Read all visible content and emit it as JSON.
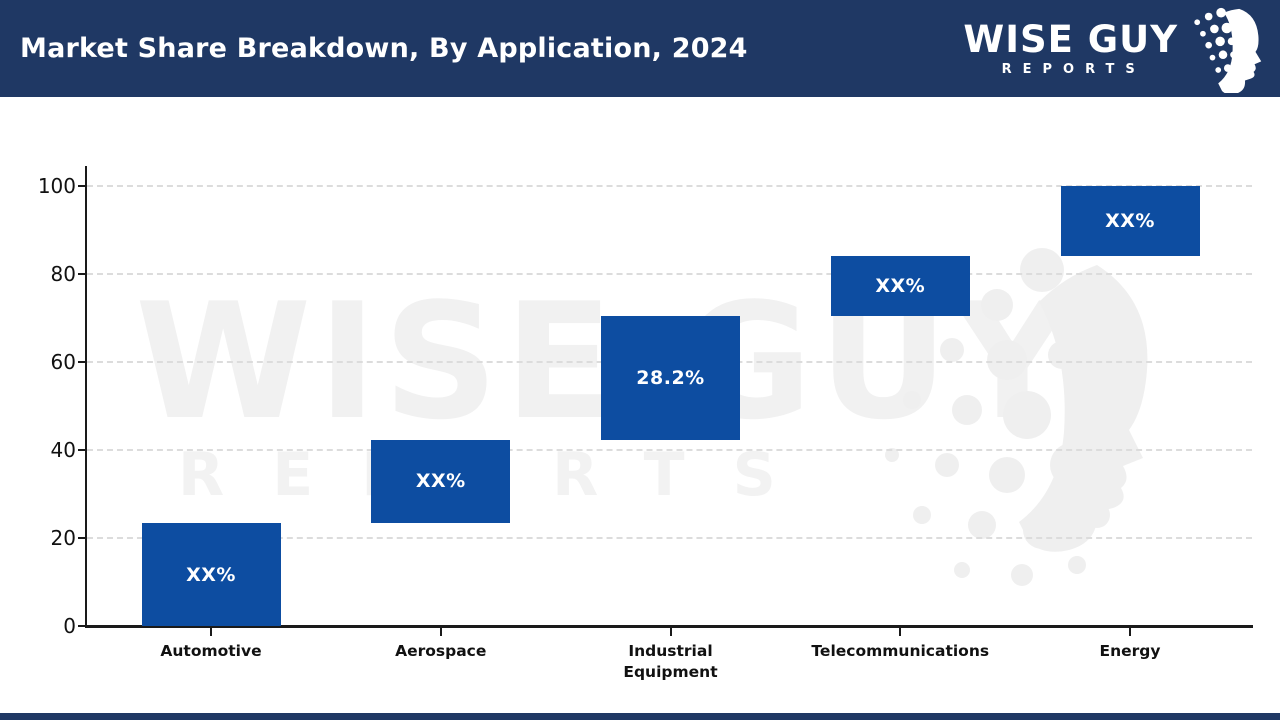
{
  "header": {
    "title": "Market Share Breakdown, By Application, 2024",
    "logo": {
      "line1": "WISE GUY",
      "line2": "REPORTS"
    }
  },
  "watermark": {
    "line1": "WISE GUY",
    "line2": "REPORTS"
  },
  "chart_data": {
    "type": "bar",
    "subtype": "waterfall",
    "title": "Market Share Breakdown, By Application, 2024",
    "categories": [
      "Automotive",
      "Aerospace",
      "Industrial\nEquipment",
      "Telecommunications",
      "Energy"
    ],
    "segments": [
      {
        "category": "Automotive",
        "start": 0,
        "end": 23.4,
        "value": 23.4,
        "label": "XX%"
      },
      {
        "category": "Aerospace",
        "start": 23.4,
        "end": 42.3,
        "value": 18.9,
        "label": "XX%"
      },
      {
        "category": "Industrial Equipment",
        "start": 42.3,
        "end": 70.5,
        "value": 28.2,
        "label": "28.2%"
      },
      {
        "category": "Telecommunications",
        "start": 70.5,
        "end": 84.2,
        "value": 13.7,
        "label": "XX%"
      },
      {
        "category": "Energy",
        "start": 84.2,
        "end": 100,
        "value": 15.8,
        "label": "XX%"
      }
    ],
    "y_ticks": [
      0,
      20,
      40,
      60,
      80,
      100
    ],
    "ylim": [
      0,
      105
    ],
    "xlabel": "",
    "ylabel": "",
    "grid": "horizontal-dashed",
    "legend": "none",
    "bar_color": "#0d4da1",
    "bar_label_color": "#ffffff"
  },
  "colors": {
    "header_bg": "#1f3864",
    "footer_bg": "#1f3864",
    "bar": "#0d4da1",
    "grid": "#dcdcdc",
    "axis": "#1a1a1a",
    "watermark": "#f1f1f1",
    "title_text": "#ffffff"
  }
}
